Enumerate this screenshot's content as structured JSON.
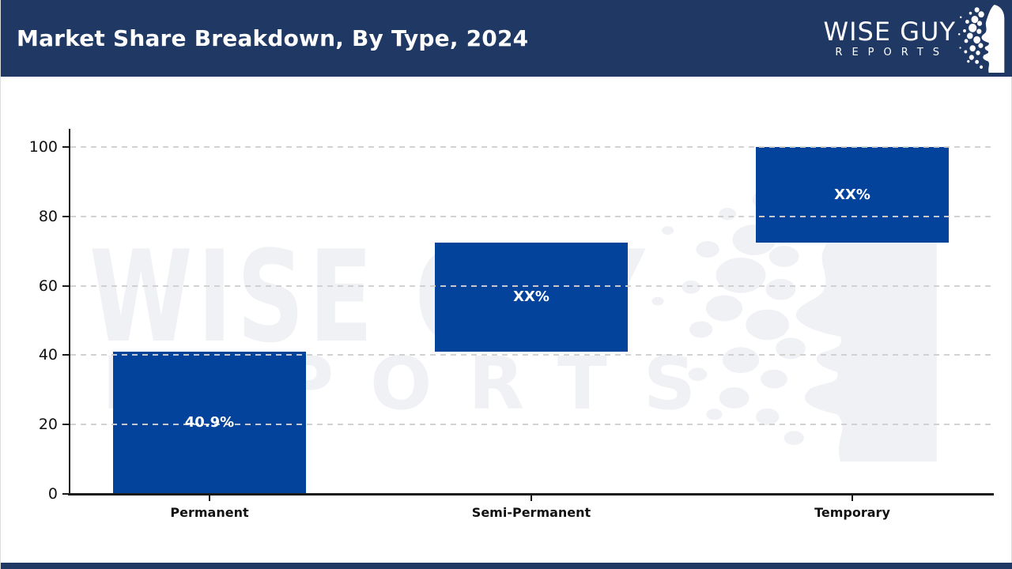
{
  "header": {
    "title": "Market Share Breakdown, By Type, 2024",
    "logo": {
      "line1": "WISE GUY",
      "line2": "REPORTS"
    }
  },
  "watermark": {
    "line1": "WISE GUY",
    "line2": "REPORTS"
  },
  "colors": {
    "header_bg": "#1f3864",
    "bar": "#04439c",
    "grid": "#cfcfcf",
    "axis": "#1a1a1a",
    "bar_label_text": "#ffffff",
    "watermark": "#f0f1f4"
  },
  "chart_data": {
    "type": "bar",
    "subtype": "waterfall-segments",
    "title": "Market Share Breakdown, By Type, 2024",
    "categories": [
      "Permanent",
      "Semi-Permanent",
      "Temporary"
    ],
    "segments": [
      {
        "category": "Permanent",
        "start": 0,
        "end": 40.9,
        "label": "40.9%"
      },
      {
        "category": "Semi-Permanent",
        "start": 40.9,
        "end": 72.4,
        "label": "XX%"
      },
      {
        "category": "Temporary",
        "start": 72.4,
        "end": 100,
        "label": "XX%"
      }
    ],
    "xlabel": "",
    "ylabel": "",
    "yticks": [
      0,
      20,
      40,
      60,
      80,
      100
    ],
    "ylim": [
      0,
      105
    ],
    "grid": "horizontal-dashed",
    "legend": "none"
  }
}
